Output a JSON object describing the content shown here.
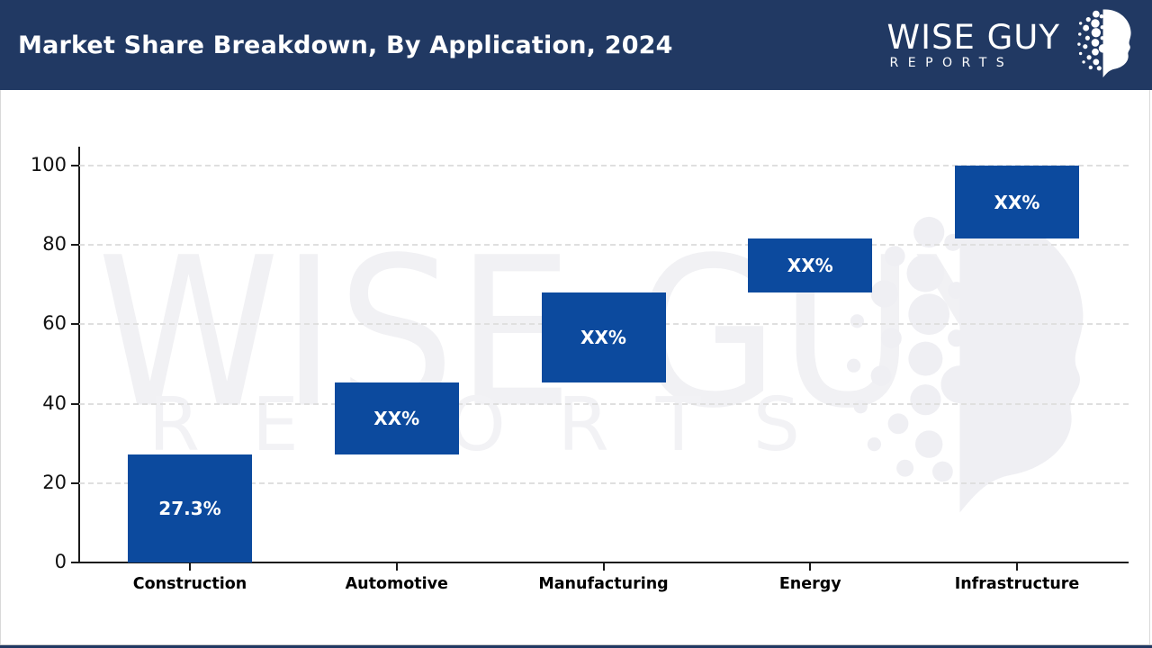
{
  "header": {
    "title": "Market Share Breakdown, By Application, 2024",
    "logo": {
      "line1": "WISE GUY",
      "line2": "REPORTS"
    }
  },
  "watermark": {
    "line1": "WISE GUY",
    "line2": "REPORTS"
  },
  "colors": {
    "header_bg": "#213963",
    "bar": "#0c4a9e",
    "bar_label": "#ffffff",
    "gridline": "#dfdfdf",
    "axis": "#1a1a1a",
    "watermark": "#f1f1f4"
  },
  "chart_data": {
    "type": "bar",
    "subtype": "waterfall",
    "title": "Market Share Breakdown, By Application, 2024",
    "categories": [
      "Construction",
      "Automotive",
      "Manufacturing",
      "Energy",
      "Infrastructure"
    ],
    "segments": [
      {
        "category": "Construction",
        "start": 0,
        "end": 27.3,
        "label": "27.3%"
      },
      {
        "category": "Automotive",
        "start": 27.3,
        "end": 45.4,
        "label": "XX%"
      },
      {
        "category": "Manufacturing",
        "start": 45.4,
        "end": 68.0,
        "label": "XX%"
      },
      {
        "category": "Energy",
        "start": 68.0,
        "end": 81.6,
        "label": "XX%"
      },
      {
        "category": "Infrastructure",
        "start": 81.6,
        "end": 100,
        "label": "XX%"
      }
    ],
    "xlabel": "",
    "ylabel": "",
    "ylim": [
      0,
      100
    ],
    "yticks": [
      0,
      20,
      40,
      60,
      80,
      100
    ],
    "grid": "horizontal-dashed",
    "legend": "none"
  }
}
